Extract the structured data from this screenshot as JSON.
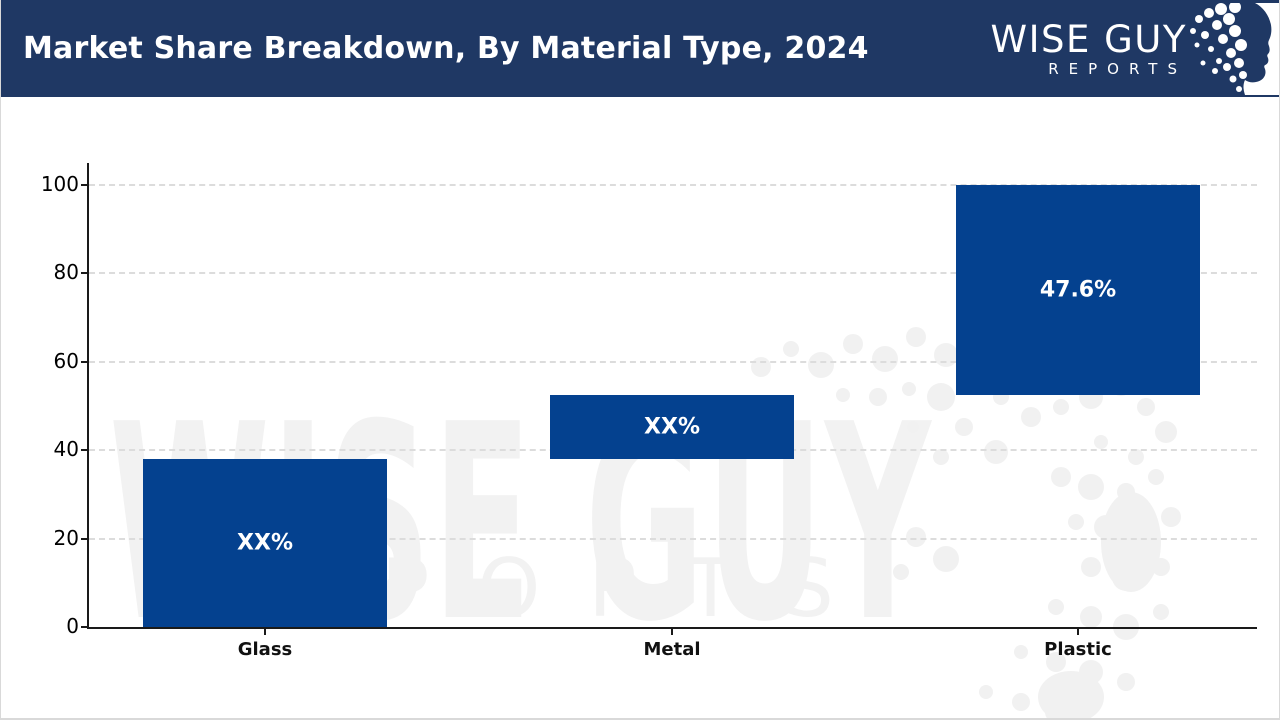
{
  "header": {
    "title": "Market Share Breakdown, By Material Type, 2024",
    "logo": {
      "name": "WISE GUY",
      "reports": "REPORTS"
    }
  },
  "watermark": {
    "name": "WISE GUY",
    "reports": "REPORTS"
  },
  "chart_data": {
    "type": "bar",
    "subtype": "floating-waterfall",
    "title": "Market Share Breakdown, By Material Type, 2024",
    "categories": [
      "Glass",
      "Metal",
      "Plastic"
    ],
    "yticks": [
      0,
      20,
      40,
      60,
      80,
      100
    ],
    "ylim": [
      0,
      105
    ],
    "grid": "horizontal-dashed",
    "legend": "none",
    "bar_color": "#04418f",
    "bar_label_color": "#ffffff",
    "bars": [
      {
        "category": "Glass",
        "start": 0,
        "end": 38,
        "label": "XX%"
      },
      {
        "category": "Metal",
        "start": 38,
        "end": 52.4,
        "label": "XX%"
      },
      {
        "category": "Plastic",
        "start": 52.4,
        "end": 100,
        "label": "47.6%"
      }
    ]
  },
  "colors": {
    "header_bg": "#1f3864",
    "bar": "#04418f",
    "gridline": "#dcdcdc",
    "axis": "#1a1a1a",
    "watermark": "#f2f2f2"
  }
}
